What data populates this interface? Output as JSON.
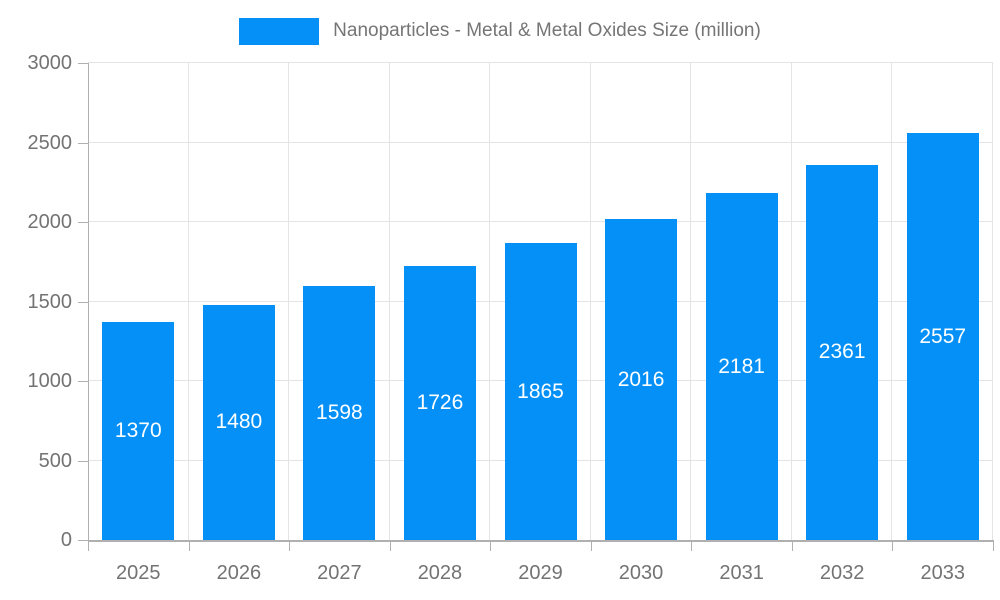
{
  "chart_data": {
    "type": "bar",
    "title": "Nanoparticles - Metal & Metal Oxides Size (million)",
    "categories": [
      "2025",
      "2026",
      "2027",
      "2028",
      "2029",
      "2030",
      "2031",
      "2032",
      "2033"
    ],
    "values": [
      1370,
      1480,
      1598,
      1726,
      1865,
      2016,
      2181,
      2361,
      2557
    ],
    "xlabel": "",
    "ylabel": "",
    "ylim": [
      0,
      3000
    ],
    "yticks": [
      0,
      500,
      1000,
      1500,
      2000,
      2500,
      3000
    ],
    "grid": "on",
    "legend_position": "top-center",
    "data_labels": "inside-center-white"
  },
  "colors": {
    "bar": "#0590f8",
    "grid": "#e4e4e4",
    "axis": "#b0b0b0",
    "text": "#737373",
    "bar_label": "#ffffff",
    "background": "#ffffff"
  }
}
